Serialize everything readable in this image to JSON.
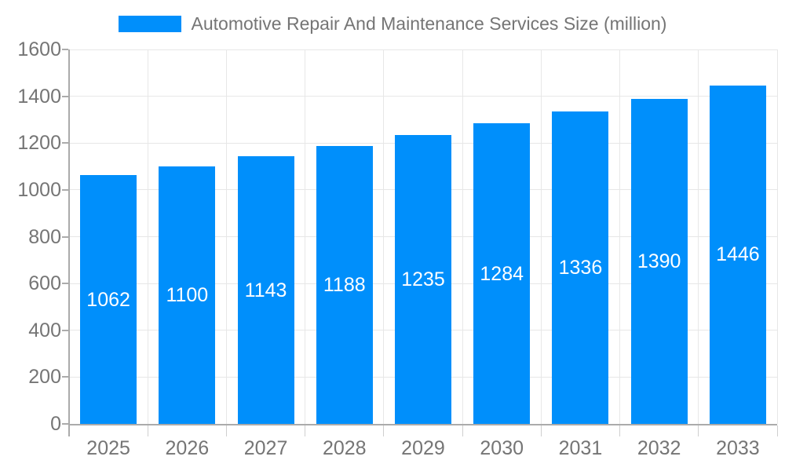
{
  "chart_data": {
    "type": "bar",
    "title": "Automotive Repair And Maintenance Services Size (million)",
    "legend_position": "top",
    "categories": [
      "2025",
      "2026",
      "2027",
      "2028",
      "2029",
      "2030",
      "2031",
      "2032",
      "2033"
    ],
    "values": [
      1062,
      1100,
      1143,
      1188,
      1235,
      1284,
      1336,
      1390,
      1446
    ],
    "xlabel": "",
    "ylabel": "",
    "ylim": [
      0,
      1600
    ],
    "yticks": [
      0,
      200,
      400,
      600,
      800,
      1000,
      1200,
      1400,
      1600
    ],
    "grid": true,
    "bar_color": "#008FFB",
    "value_label_color": "#FFFFFF",
    "axis_label_color": "#757575",
    "gridline_color": "#E7E7E7",
    "axis_line_color": "#ABABAB",
    "minor_tick_color": "#CFCFCF",
    "background_color": "#FFFFFF"
  }
}
